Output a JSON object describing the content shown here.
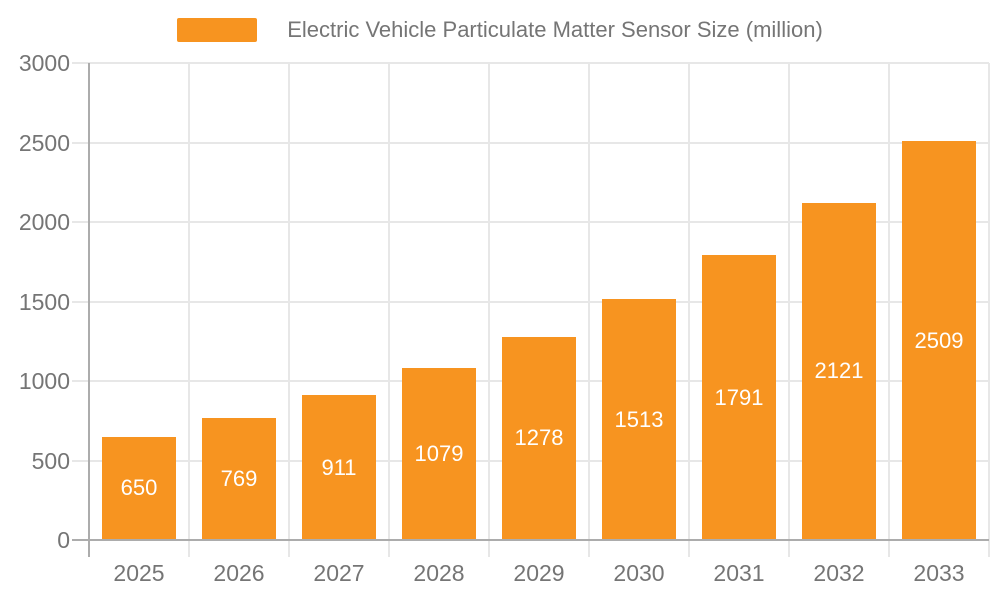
{
  "chart_data": {
    "type": "bar",
    "title": "Electric Vehicle Particulate Matter Sensor Size (million)",
    "categories": [
      "2025",
      "2026",
      "2027",
      "2028",
      "2029",
      "2030",
      "2031",
      "2032",
      "2033"
    ],
    "values": [
      650,
      769,
      911,
      1079,
      1278,
      1513,
      1791,
      2121,
      2509
    ],
    "data_labels": [
      "650",
      "769",
      "911",
      "1079",
      "1278",
      "1513",
      "1791",
      "2121",
      "2509"
    ],
    "xlabel": "",
    "ylabel": "",
    "ylim": [
      0,
      3000
    ],
    "ytick_step": 500,
    "yticks": [
      0,
      500,
      1000,
      1500,
      2000,
      2500,
      3000
    ],
    "ytick_labels": [
      "0",
      "500",
      "1000",
      "1500",
      "2000",
      "2500",
      "3000"
    ],
    "grid": true,
    "legend_position": "top",
    "show_data_labels": true,
    "data_label_position": "center-inside"
  },
  "colors": {
    "bar": "#F79420",
    "bar_label": "#FFFFFF",
    "axis_text": "#757575",
    "grid_line": "#E7E7E7",
    "zero_line": "#ACACAC",
    "background": "#FFFFFF"
  }
}
